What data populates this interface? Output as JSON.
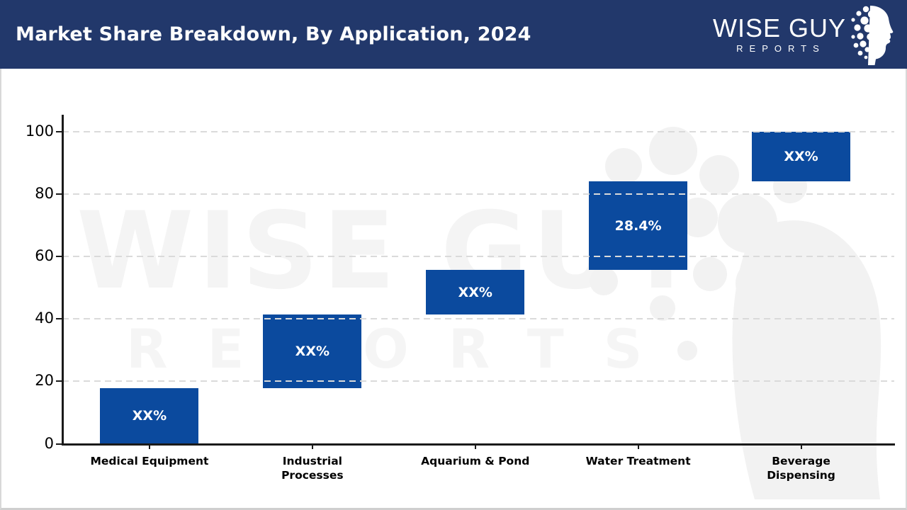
{
  "header": {
    "title": "Market Share Breakdown, By Application, 2024",
    "bg_color": "#22386b",
    "logo": {
      "line1": "WISE GUY",
      "line2": "REPORTS"
    }
  },
  "watermark": {
    "line1": "WISE GUY",
    "line2": "REPORTS"
  },
  "chart_data": {
    "type": "bar",
    "subtype": "waterfall",
    "title": "Market Share Breakdown, By Application, 2024",
    "categories": [
      "Medical Equipment",
      "Industrial\nProcesses",
      "Aquarium & Pond",
      "Water Treatment",
      "Beverage\nDispensing"
    ],
    "segments": [
      {
        "category": "Medical Equipment",
        "start": 0,
        "end": 17.7,
        "label": "XX%"
      },
      {
        "category": "Industrial Processes",
        "start": 17.7,
        "end": 41.3,
        "label": "XX%"
      },
      {
        "category": "Aquarium & Pond",
        "start": 41.3,
        "end": 55.6,
        "label": "XX%"
      },
      {
        "category": "Water Treatment",
        "start": 55.6,
        "end": 84.0,
        "label": "28.4%",
        "value": 28.4
      },
      {
        "category": "Beverage Dispensing",
        "start": 84.0,
        "end": 100,
        "label": "XX%"
      }
    ],
    "ylim": [
      0,
      100
    ],
    "yticks": [
      0,
      20,
      40,
      60,
      80,
      100
    ],
    "xlabel": "",
    "ylabel": "",
    "grid": {
      "axis": "y",
      "style": "dashed",
      "color": "#dadada"
    },
    "legend": "none",
    "bar_color": "#0b4a9e",
    "bar_label_color": "#ffffff"
  }
}
